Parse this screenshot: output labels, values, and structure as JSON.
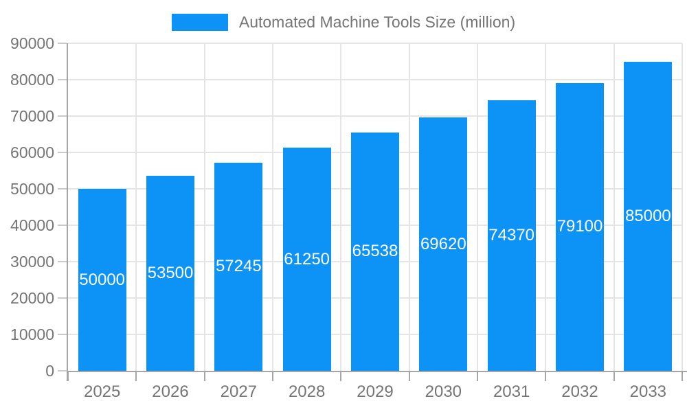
{
  "chart_data": {
    "type": "bar",
    "title": "",
    "legend": "Automated Machine Tools Size (million)",
    "legend_position": "top",
    "categories": [
      "2025",
      "2026",
      "2027",
      "2028",
      "2029",
      "2030",
      "2031",
      "2032",
      "2033"
    ],
    "series": [
      {
        "name": "Automated Machine Tools Size (million)",
        "values": [
          50000,
          53500,
          57245,
          61250,
          65538,
          69620,
          74370,
          79100,
          85000
        ]
      }
    ],
    "bar_value_labels": [
      "50000",
      "53500",
      "57245",
      "61250",
      "65538",
      "69620",
      "74370",
      "79100",
      "85000"
    ],
    "xlabel": "",
    "ylabel": "",
    "ylim": [
      0,
      90000
    ],
    "y_ticks": [
      0,
      10000,
      20000,
      30000,
      40000,
      50000,
      60000,
      70000,
      80000,
      90000
    ],
    "grid": true,
    "colors": {
      "bar": "#0D92F5",
      "bar_label_text": "#FFFFFF",
      "axis_text": "#757575",
      "grid_line": "#E5E5E5",
      "axis_line": "#A6A6A6",
      "tick_line": "#C9C9C9",
      "background": "#FFFFFF"
    }
  }
}
